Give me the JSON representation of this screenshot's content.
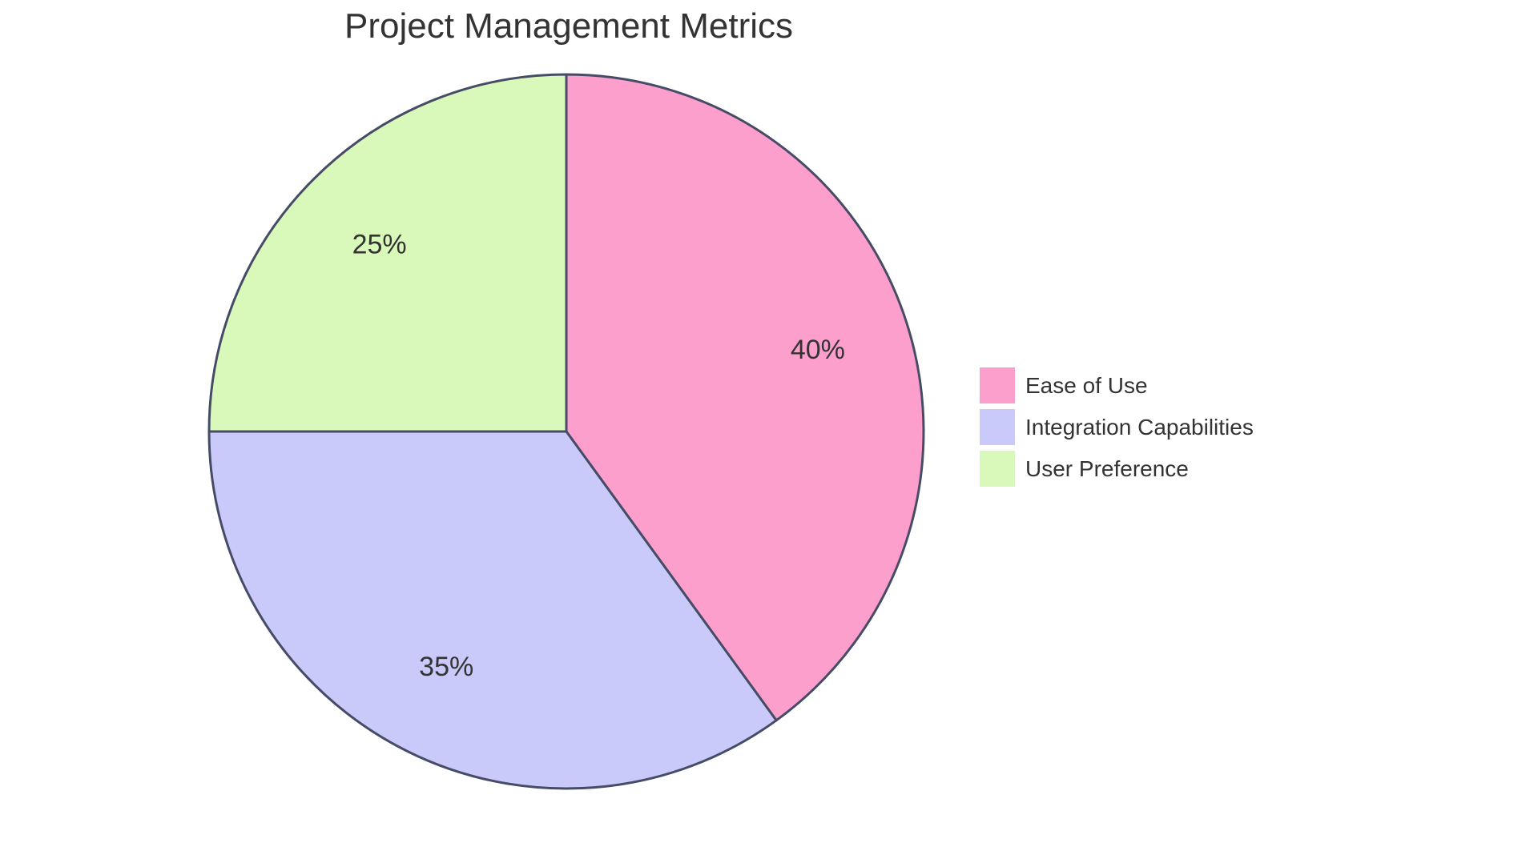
{
  "chart": {
    "title": "Project Management Metrics"
  },
  "chart_data": {
    "type": "pie",
    "title": "Project Management Metrics",
    "labels": [
      "Ease of Use",
      "Integration Capabilities",
      "User Preference"
    ],
    "values": [
      40,
      35,
      25
    ],
    "value_labels": [
      "40%",
      "35%",
      "25%"
    ],
    "colors": [
      "#FC9FCD",
      "#C9C9FA",
      "#D9F9BA"
    ],
    "slice_border_color": "#464C66",
    "text_color": "#333333",
    "background_color": "#FFFFFF",
    "start_angle_deg": 0,
    "direction": "clockwise",
    "legend_position": "right",
    "legend_entries": [
      "Ease of Use",
      "Integration Capabilities",
      "User Preference"
    ]
  }
}
